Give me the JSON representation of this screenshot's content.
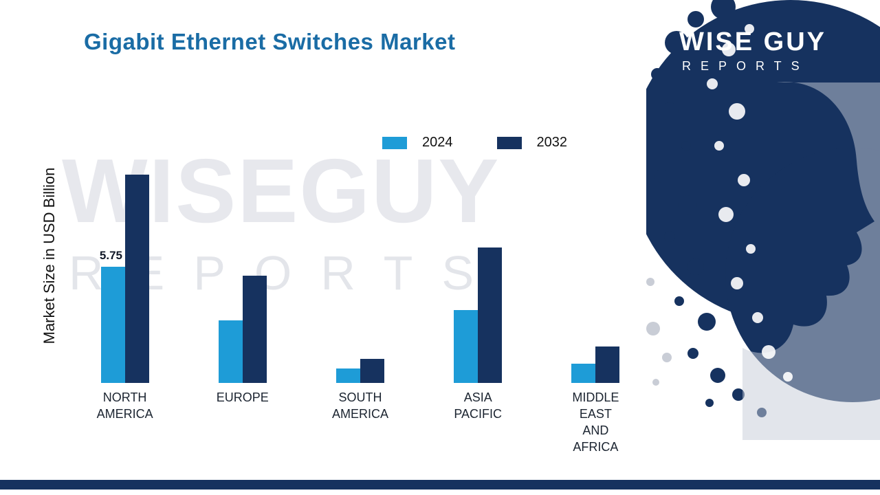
{
  "page": {
    "title": "Gigabit Ethernet Switches Market"
  },
  "brand": {
    "name": "WISE GUY",
    "sub": "REPORTS"
  },
  "watermark": {
    "line1": "WISEGUY",
    "line2": "REPORTS"
  },
  "colors": {
    "title": "#1a6ca5",
    "series_2024": "#1e9cd7",
    "series_2032": "#16325f",
    "accent_bar": "#16325f"
  },
  "chart_data": {
    "type": "bar",
    "title": "Gigabit Ethernet Switches Market",
    "xlabel": "",
    "ylabel": "Market Size in USD Billion",
    "ylim": [
      0,
      11
    ],
    "grid": false,
    "legend_position": "top",
    "categories": [
      "NORTH AMERICA",
      "EUROPE",
      "SOUTH AMERICA",
      "ASIA PACIFIC",
      "MIDDLE EAST AND AFRICA"
    ],
    "category_lines": [
      [
        "NORTH",
        "AMERICA"
      ],
      [
        "EUROPE"
      ],
      [
        "SOUTH",
        "AMERICA"
      ],
      [
        "ASIA",
        "PACIFIC"
      ],
      [
        "MIDDLE",
        "EAST",
        "AND",
        "AFRICA"
      ]
    ],
    "series": [
      {
        "name": "2024",
        "color": "#1e9cd7",
        "values": [
          5.75,
          3.1,
          0.7,
          3.6,
          0.95
        ]
      },
      {
        "name": "2032",
        "color": "#16325f",
        "values": [
          10.3,
          5.3,
          1.2,
          6.7,
          1.8
        ]
      }
    ],
    "annotations": [
      {
        "series": "2024",
        "category": "NORTH AMERICA",
        "text": "5.75"
      }
    ]
  }
}
